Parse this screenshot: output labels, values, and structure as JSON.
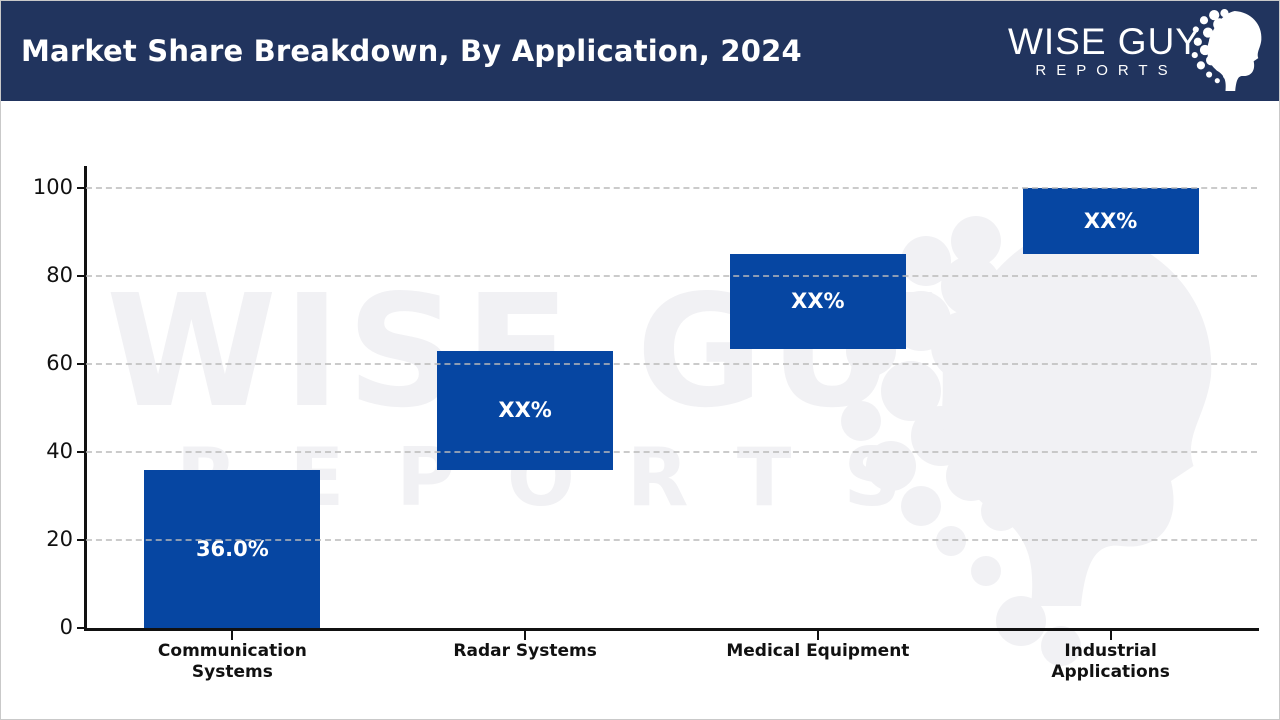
{
  "header": {
    "title": "Market Share Breakdown, By Application, 2024",
    "logo_line1": "WISE GUY",
    "logo_line2": "REPORTS"
  },
  "watermark": {
    "line1": "WISE GUY",
    "line2": "REPORTS"
  },
  "colors": {
    "header_bg": "#21345e",
    "bar": "#0646a2",
    "bar_label": "#ffffff",
    "grid": "#b9b9b9",
    "axis": "#111111",
    "watermark": "#f1f1f4"
  },
  "chart_data": {
    "type": "bar",
    "subtype": "floating_segment_waterfall",
    "title": "Market Share Breakdown, By Application, 2024",
    "categories": [
      "Communication Systems",
      "Radar Systems",
      "Medical Equipment",
      "Industrial Applications"
    ],
    "category_label_lines": [
      [
        "Communication",
        "Systems"
      ],
      [
        "Radar Systems"
      ],
      [
        "Medical Equipment"
      ],
      [
        "Industrial",
        "Applications"
      ]
    ],
    "segments": [
      {
        "category": "Communication Systems",
        "start": 0,
        "end": 36,
        "label": "36.0%"
      },
      {
        "category": "Radar Systems",
        "start": 36,
        "end": 63,
        "label": "XX%"
      },
      {
        "category": "Medical Equipment",
        "start": 63.5,
        "end": 85,
        "label": "XX%"
      },
      {
        "category": "Industrial Applications",
        "start": 85,
        "end": 100,
        "label": "XX%"
      }
    ],
    "yticks": [
      0,
      20,
      40,
      60,
      80,
      100
    ],
    "ylim": [
      0,
      105
    ],
    "unit": "percent",
    "xlabel": "",
    "ylabel": "",
    "grid": "horizontal_dashed",
    "legend": "none",
    "bar_color": "#0646a2"
  }
}
